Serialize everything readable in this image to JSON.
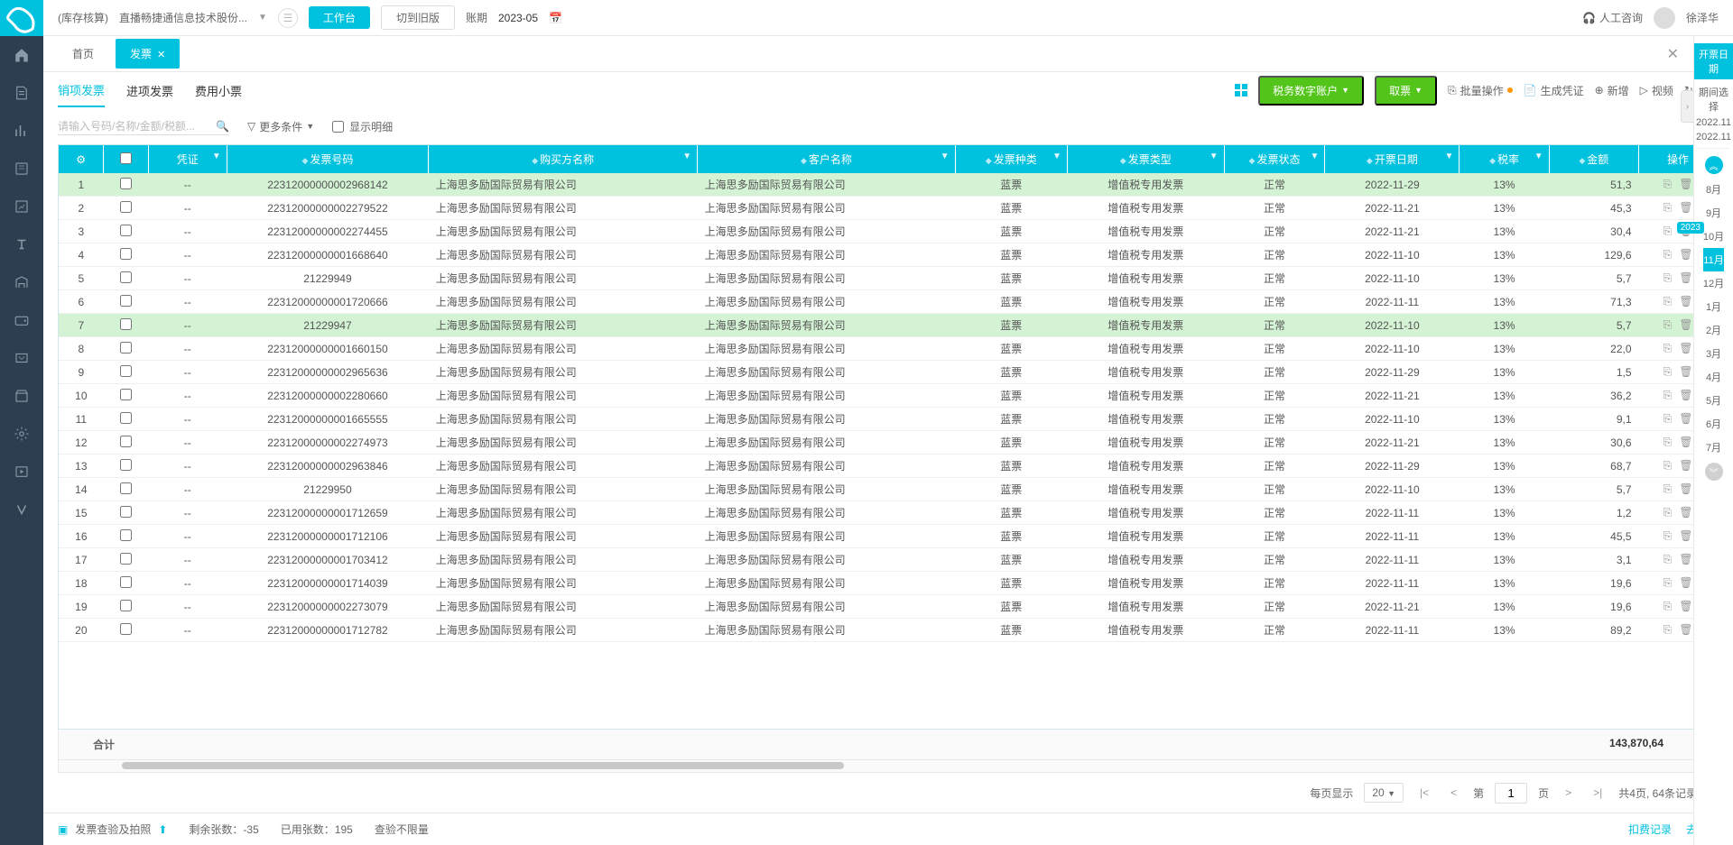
{
  "header": {
    "org_prefix": "(库存核算)",
    "org_name": "直播畅捷通信息技术股份...",
    "workspace_btn": "工作台",
    "switch_old_btn": "切到旧版",
    "period_label": "账期",
    "period_value": "2023-05",
    "consult": "人工咨询",
    "username": "徐泽华"
  },
  "tabs": {
    "home": "首页",
    "invoice": "发票"
  },
  "subtabs": {
    "sales": "销项发票",
    "purchase": "进项发票",
    "expense": "费用小票"
  },
  "toolbar": {
    "tax_account": "税务数字账户",
    "get_invoice": "取票",
    "batch": "批量操作",
    "gen_voucher": "生成凭证",
    "add": "新增",
    "video": "视频",
    "refresh": "刷新"
  },
  "filter": {
    "search_placeholder": "请输入号码/名称/金额/税额...",
    "more": "更多条件",
    "show_detail": "显示明细"
  },
  "columns": {
    "seq": "",
    "check": "",
    "voucher": "凭证",
    "invoice_no": "发票号码",
    "buyer": "购买方名称",
    "customer": "客户名称",
    "invoice_kind": "发票种类",
    "invoice_type": "发票类型",
    "invoice_status": "发票状态",
    "issue_date": "开票日期",
    "tax_rate": "税率",
    "amount": "金额",
    "action": "操作"
  },
  "rows": [
    {
      "seq": 1,
      "voucher": "--",
      "no": "22312000000002968142",
      "buyer": "上海思多励国际贸易有限公司",
      "customer": "上海思多励国际贸易有限公司",
      "kind": "蓝票",
      "type": "增值税专用发票",
      "status": "正常",
      "date": "2022-11-29",
      "rate": "13%",
      "amount": "51,3",
      "hl": true
    },
    {
      "seq": 2,
      "voucher": "--",
      "no": "22312000000002279522",
      "buyer": "上海思多励国际贸易有限公司",
      "customer": "上海思多励国际贸易有限公司",
      "kind": "蓝票",
      "type": "增值税专用发票",
      "status": "正常",
      "date": "2022-11-21",
      "rate": "13%",
      "amount": "45,3"
    },
    {
      "seq": 3,
      "voucher": "--",
      "no": "22312000000002274455",
      "buyer": "上海思多励国际贸易有限公司",
      "customer": "上海思多励国际贸易有限公司",
      "kind": "蓝票",
      "type": "增值税专用发票",
      "status": "正常",
      "date": "2022-11-21",
      "rate": "13%",
      "amount": "30,4"
    },
    {
      "seq": 4,
      "voucher": "--",
      "no": "22312000000001668640",
      "buyer": "上海思多励国际贸易有限公司",
      "customer": "上海思多励国际贸易有限公司",
      "kind": "蓝票",
      "type": "增值税专用发票",
      "status": "正常",
      "date": "2022-11-10",
      "rate": "13%",
      "amount": "129,6"
    },
    {
      "seq": 5,
      "voucher": "--",
      "no": "21229949",
      "buyer": "上海思多励国际贸易有限公司",
      "customer": "上海思多励国际贸易有限公司",
      "kind": "蓝票",
      "type": "增值税专用发票",
      "status": "正常",
      "date": "2022-11-10",
      "rate": "13%",
      "amount": "5,7"
    },
    {
      "seq": 6,
      "voucher": "--",
      "no": "22312000000001720666",
      "buyer": "上海思多励国际贸易有限公司",
      "customer": "上海思多励国际贸易有限公司",
      "kind": "蓝票",
      "type": "增值税专用发票",
      "status": "正常",
      "date": "2022-11-11",
      "rate": "13%",
      "amount": "71,3"
    },
    {
      "seq": 7,
      "voucher": "--",
      "no": "21229947",
      "buyer": "上海思多励国际贸易有限公司",
      "customer": "上海思多励国际贸易有限公司",
      "kind": "蓝票",
      "type": "增值税专用发票",
      "status": "正常",
      "date": "2022-11-10",
      "rate": "13%",
      "amount": "5,7",
      "hl": true
    },
    {
      "seq": 8,
      "voucher": "--",
      "no": "22312000000001660150",
      "buyer": "上海思多励国际贸易有限公司",
      "customer": "上海思多励国际贸易有限公司",
      "kind": "蓝票",
      "type": "增值税专用发票",
      "status": "正常",
      "date": "2022-11-10",
      "rate": "13%",
      "amount": "22,0"
    },
    {
      "seq": 9,
      "voucher": "--",
      "no": "22312000000002965636",
      "buyer": "上海思多励国际贸易有限公司",
      "customer": "上海思多励国际贸易有限公司",
      "kind": "蓝票",
      "type": "增值税专用发票",
      "status": "正常",
      "date": "2022-11-29",
      "rate": "13%",
      "amount": "1,5"
    },
    {
      "seq": 10,
      "voucher": "--",
      "no": "22312000000002280660",
      "buyer": "上海思多励国际贸易有限公司",
      "customer": "上海思多励国际贸易有限公司",
      "kind": "蓝票",
      "type": "增值税专用发票",
      "status": "正常",
      "date": "2022-11-21",
      "rate": "13%",
      "amount": "36,2"
    },
    {
      "seq": 11,
      "voucher": "--",
      "no": "22312000000001665555",
      "buyer": "上海思多励国际贸易有限公司",
      "customer": "上海思多励国际贸易有限公司",
      "kind": "蓝票",
      "type": "增值税专用发票",
      "status": "正常",
      "date": "2022-11-10",
      "rate": "13%",
      "amount": "9,1"
    },
    {
      "seq": 12,
      "voucher": "--",
      "no": "22312000000002274973",
      "buyer": "上海思多励国际贸易有限公司",
      "customer": "上海思多励国际贸易有限公司",
      "kind": "蓝票",
      "type": "增值税专用发票",
      "status": "正常",
      "date": "2022-11-21",
      "rate": "13%",
      "amount": "30,6"
    },
    {
      "seq": 13,
      "voucher": "--",
      "no": "22312000000002963846",
      "buyer": "上海思多励国际贸易有限公司",
      "customer": "上海思多励国际贸易有限公司",
      "kind": "蓝票",
      "type": "增值税专用发票",
      "status": "正常",
      "date": "2022-11-29",
      "rate": "13%",
      "amount": "68,7"
    },
    {
      "seq": 14,
      "voucher": "--",
      "no": "21229950",
      "buyer": "上海思多励国际贸易有限公司",
      "customer": "上海思多励国际贸易有限公司",
      "kind": "蓝票",
      "type": "增值税专用发票",
      "status": "正常",
      "date": "2022-11-10",
      "rate": "13%",
      "amount": "5,7"
    },
    {
      "seq": 15,
      "voucher": "--",
      "no": "22312000000001712659",
      "buyer": "上海思多励国际贸易有限公司",
      "customer": "上海思多励国际贸易有限公司",
      "kind": "蓝票",
      "type": "增值税专用发票",
      "status": "正常",
      "date": "2022-11-11",
      "rate": "13%",
      "amount": "1,2"
    },
    {
      "seq": 16,
      "voucher": "--",
      "no": "22312000000001712106",
      "buyer": "上海思多励国际贸易有限公司",
      "customer": "上海思多励国际贸易有限公司",
      "kind": "蓝票",
      "type": "增值税专用发票",
      "status": "正常",
      "date": "2022-11-11",
      "rate": "13%",
      "amount": "45,5"
    },
    {
      "seq": 17,
      "voucher": "--",
      "no": "22312000000001703412",
      "buyer": "上海思多励国际贸易有限公司",
      "customer": "上海思多励国际贸易有限公司",
      "kind": "蓝票",
      "type": "增值税专用发票",
      "status": "正常",
      "date": "2022-11-11",
      "rate": "13%",
      "amount": "3,1"
    },
    {
      "seq": 18,
      "voucher": "--",
      "no": "22312000000001714039",
      "buyer": "上海思多励国际贸易有限公司",
      "customer": "上海思多励国际贸易有限公司",
      "kind": "蓝票",
      "type": "增值税专用发票",
      "status": "正常",
      "date": "2022-11-11",
      "rate": "13%",
      "amount": "19,6"
    },
    {
      "seq": 19,
      "voucher": "--",
      "no": "22312000000002273079",
      "buyer": "上海思多励国际贸易有限公司",
      "customer": "上海思多励国际贸易有限公司",
      "kind": "蓝票",
      "type": "增值税专用发票",
      "status": "正常",
      "date": "2022-11-21",
      "rate": "13%",
      "amount": "19,6"
    },
    {
      "seq": 20,
      "voucher": "--",
      "no": "22312000000001712782",
      "buyer": "上海思多励国际贸易有限公司",
      "customer": "上海思多励国际贸易有限公司",
      "kind": "蓝票",
      "type": "增值税专用发票",
      "status": "正常",
      "date": "2022-11-11",
      "rate": "13%",
      "amount": "89,2"
    }
  ],
  "summary": {
    "label": "合计",
    "total": "143,870,64"
  },
  "pagination": {
    "per_page_label": "每页显示",
    "per_page_value": "20",
    "page_label_prefix": "第",
    "page_value": "1",
    "page_label_suffix": "页",
    "total_text": "共4页, 64条记录"
  },
  "footer": {
    "verify": "发票查验及拍照",
    "remaining": "剩余张数：-35",
    "used": "已用张数：195",
    "unlimited": "查验不限量",
    "deduct_log": "扣费记录",
    "recharge": "去充值"
  },
  "date_panel": {
    "btn": "开票日期",
    "title": "期间选择",
    "year1": "2022.11",
    "year2": "2022.11",
    "months_top": [
      "8月",
      "9月",
      "10月",
      "11月",
      "12月"
    ],
    "badge": "2023",
    "months_bottom": [
      "1月",
      "2月",
      "3月",
      "4月",
      "5月",
      "6月",
      "7月"
    ],
    "active_month": "11月"
  }
}
